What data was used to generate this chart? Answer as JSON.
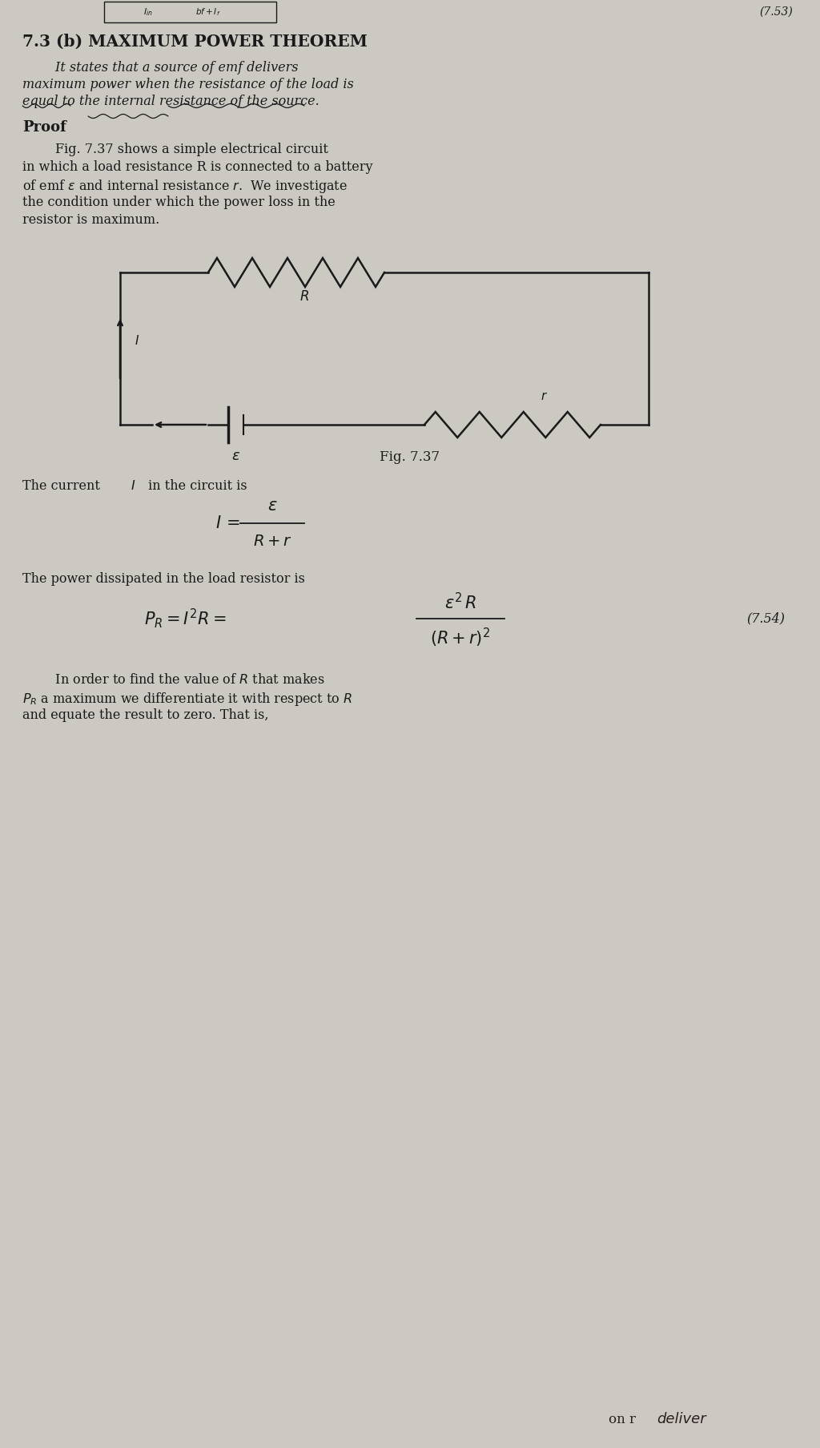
{
  "bg_color": "#ccc8c2",
  "text_color": "#1a1a1a",
  "page_width": 10.24,
  "page_height": 18.07,
  "top_formula": "(7.53)",
  "section_title": "7.3 (b) MAXIMUM POWER THEOREM",
  "proof_label": "Proof",
  "fig_caption": "Fig. 7.37",
  "current_text": "The current ",
  "power_text": "The power dissipated in the load resistor is",
  "formula2_ref": "(7.54)",
  "handwriting": "deliver"
}
